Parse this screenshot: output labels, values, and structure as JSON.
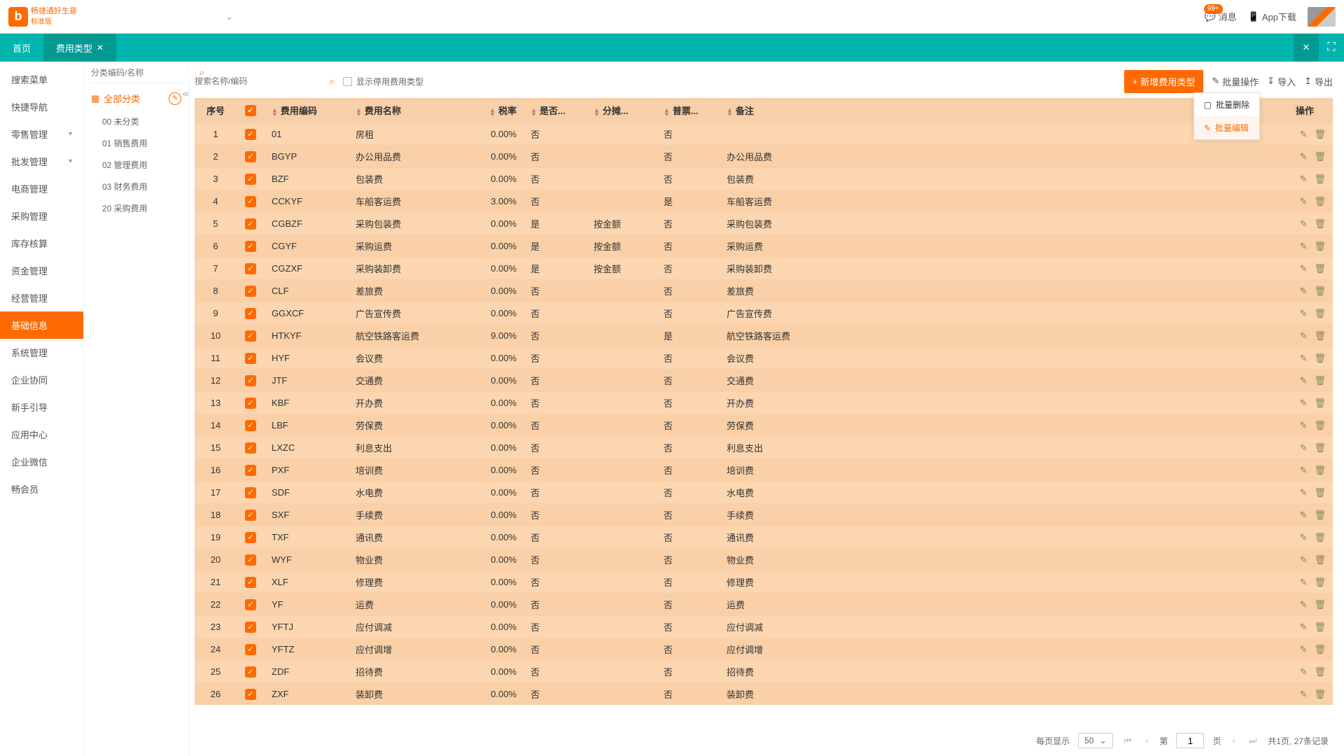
{
  "brand": {
    "name": "畅捷通好生意",
    "sub": "标准版"
  },
  "topbar": {
    "messages_label": "消息",
    "messages_badge": "99+",
    "download_label": "App下载"
  },
  "tabs": {
    "home": "首页",
    "current": "费用类型"
  },
  "sidebar": {
    "items": [
      {
        "label": "搜索菜单",
        "chev": false
      },
      {
        "label": "快捷导航",
        "chev": false
      },
      {
        "label": "零售管理",
        "chev": true
      },
      {
        "label": "批发管理",
        "chev": true
      },
      {
        "label": "电商管理",
        "chev": false
      },
      {
        "label": "采购管理",
        "chev": false
      },
      {
        "label": "库存核算",
        "chev": false
      },
      {
        "label": "资金管理",
        "chev": false
      },
      {
        "label": "经营管理",
        "chev": false
      },
      {
        "label": "基础信息",
        "chev": false,
        "active": true
      },
      {
        "label": "系统管理",
        "chev": false
      },
      {
        "label": "企业协同",
        "chev": false
      },
      {
        "label": "新手引导",
        "chev": false
      },
      {
        "label": "应用中心",
        "chev": false
      },
      {
        "label": "企业微信",
        "chev": false
      },
      {
        "label": "畅会员",
        "chev": false
      }
    ]
  },
  "subpanel": {
    "search_placeholder": "分类编码/名称",
    "all_label": "全部分类",
    "categories": [
      {
        "label": "00 未分类"
      },
      {
        "label": "01 销售费用"
      },
      {
        "label": "02 管理费用"
      },
      {
        "label": "03 财务费用"
      },
      {
        "label": "20 采购费用"
      }
    ]
  },
  "toolbar": {
    "search_placeholder": "搜索名称/编码",
    "show_disabled": "显示停用费用类型",
    "add": "新增费用类型",
    "batch": "批量操作",
    "import": "导入",
    "export": "导出"
  },
  "dropdown": {
    "delete": "批量删除",
    "edit": "批量编辑"
  },
  "columns": {
    "seq": "序号",
    "code": "费用编码",
    "name": "费用名称",
    "rate": "税率",
    "isx": "是否...",
    "share": "分摊...",
    "ticket": "普票...",
    "remark": "备注",
    "op": "操作"
  },
  "rows": [
    {
      "seq": 1,
      "code": "01",
      "name": "房租",
      "rate": "0.00%",
      "isx": "否",
      "share": "",
      "ticket": "否",
      "remark": ""
    },
    {
      "seq": 2,
      "code": "BGYP",
      "name": "办公用品费",
      "rate": "0.00%",
      "isx": "否",
      "share": "",
      "ticket": "否",
      "remark": "办公用品费"
    },
    {
      "seq": 3,
      "code": "BZF",
      "name": "包装费",
      "rate": "0.00%",
      "isx": "否",
      "share": "",
      "ticket": "否",
      "remark": "包装费"
    },
    {
      "seq": 4,
      "code": "CCKYF",
      "name": "车船客运费",
      "rate": "3.00%",
      "isx": "否",
      "share": "",
      "ticket": "是",
      "remark": "车船客运费"
    },
    {
      "seq": 5,
      "code": "CGBZF",
      "name": "采购包装费",
      "rate": "0.00%",
      "isx": "是",
      "share": "按金额",
      "ticket": "否",
      "remark": "采购包装费"
    },
    {
      "seq": 6,
      "code": "CGYF",
      "name": "采购运费",
      "rate": "0.00%",
      "isx": "是",
      "share": "按金额",
      "ticket": "否",
      "remark": "采购运费"
    },
    {
      "seq": 7,
      "code": "CGZXF",
      "name": "采购装卸费",
      "rate": "0.00%",
      "isx": "是",
      "share": "按金额",
      "ticket": "否",
      "remark": "采购装卸费"
    },
    {
      "seq": 8,
      "code": "CLF",
      "name": "差旅费",
      "rate": "0.00%",
      "isx": "否",
      "share": "",
      "ticket": "否",
      "remark": "差旅费"
    },
    {
      "seq": 9,
      "code": "GGXCF",
      "name": "广告宣传费",
      "rate": "0.00%",
      "isx": "否",
      "share": "",
      "ticket": "否",
      "remark": "广告宣传费"
    },
    {
      "seq": 10,
      "code": "HTKYF",
      "name": "航空铁路客运费",
      "rate": "9.00%",
      "isx": "否",
      "share": "",
      "ticket": "是",
      "remark": "航空铁路客运费"
    },
    {
      "seq": 11,
      "code": "HYF",
      "name": "会议费",
      "rate": "0.00%",
      "isx": "否",
      "share": "",
      "ticket": "否",
      "remark": "会议费"
    },
    {
      "seq": 12,
      "code": "JTF",
      "name": "交通费",
      "rate": "0.00%",
      "isx": "否",
      "share": "",
      "ticket": "否",
      "remark": "交通费"
    },
    {
      "seq": 13,
      "code": "KBF",
      "name": "开办费",
      "rate": "0.00%",
      "isx": "否",
      "share": "",
      "ticket": "否",
      "remark": "开办费"
    },
    {
      "seq": 14,
      "code": "LBF",
      "name": "劳保费",
      "rate": "0.00%",
      "isx": "否",
      "share": "",
      "ticket": "否",
      "remark": "劳保费"
    },
    {
      "seq": 15,
      "code": "LXZC",
      "name": "利息支出",
      "rate": "0.00%",
      "isx": "否",
      "share": "",
      "ticket": "否",
      "remark": "利息支出"
    },
    {
      "seq": 16,
      "code": "PXF",
      "name": "培训费",
      "rate": "0.00%",
      "isx": "否",
      "share": "",
      "ticket": "否",
      "remark": "培训费"
    },
    {
      "seq": 17,
      "code": "SDF",
      "name": "水电费",
      "rate": "0.00%",
      "isx": "否",
      "share": "",
      "ticket": "否",
      "remark": "水电费"
    },
    {
      "seq": 18,
      "code": "SXF",
      "name": "手续费",
      "rate": "0.00%",
      "isx": "否",
      "share": "",
      "ticket": "否",
      "remark": "手续费"
    },
    {
      "seq": 19,
      "code": "TXF",
      "name": "通讯费",
      "rate": "0.00%",
      "isx": "否",
      "share": "",
      "ticket": "否",
      "remark": "通讯费"
    },
    {
      "seq": 20,
      "code": "WYF",
      "name": "物业费",
      "rate": "0.00%",
      "isx": "否",
      "share": "",
      "ticket": "否",
      "remark": "物业费"
    },
    {
      "seq": 21,
      "code": "XLF",
      "name": "修理费",
      "rate": "0.00%",
      "isx": "否",
      "share": "",
      "ticket": "否",
      "remark": "修理费"
    },
    {
      "seq": 22,
      "code": "YF",
      "name": "运费",
      "rate": "0.00%",
      "isx": "否",
      "share": "",
      "ticket": "否",
      "remark": "运费"
    },
    {
      "seq": 23,
      "code": "YFTJ",
      "name": "应付调减",
      "rate": "0.00%",
      "isx": "否",
      "share": "",
      "ticket": "否",
      "remark": "应付调减"
    },
    {
      "seq": 24,
      "code": "YFTZ",
      "name": "应付调增",
      "rate": "0.00%",
      "isx": "否",
      "share": "",
      "ticket": "否",
      "remark": "应付调增"
    },
    {
      "seq": 25,
      "code": "ZDF",
      "name": "招待费",
      "rate": "0.00%",
      "isx": "否",
      "share": "",
      "ticket": "否",
      "remark": "招待费"
    },
    {
      "seq": 26,
      "code": "ZXF",
      "name": "装卸费",
      "rate": "0.00%",
      "isx": "否",
      "share": "",
      "ticket": "否",
      "remark": "装卸费"
    }
  ],
  "pager": {
    "per_page_label": "每页显示",
    "per_page_value": "50",
    "page_prefix": "第",
    "page_value": "1",
    "page_suffix": "页",
    "total": "共1页, 27条记录"
  },
  "colors": {
    "primary": "#ff6a00",
    "teal": "#00b5ad",
    "header_bg": "#f7cfa8",
    "row_bg": "#fbd6b0"
  }
}
